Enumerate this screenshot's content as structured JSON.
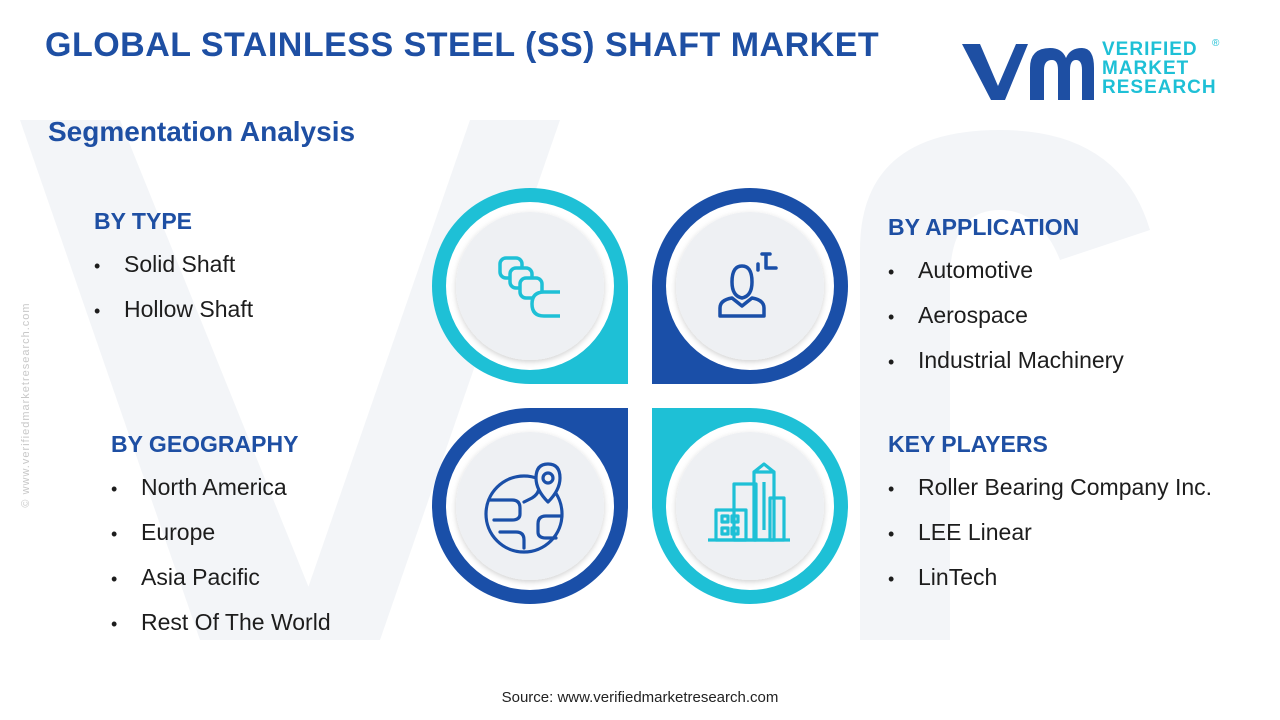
{
  "header": {
    "title": "GLOBAL STAINLESS STEEL (SS) SHAFT MARKET",
    "subtitle": "Segmentation Analysis"
  },
  "logo": {
    "line1": "VERIFIED",
    "line2": "MARKET",
    "line3": "RESEARCH",
    "registered": "®"
  },
  "side_watermark": "© www.verifiedmarketresearch.com",
  "segments": {
    "type": {
      "heading": "BY TYPE",
      "items": [
        "Solid Shaft",
        "Hollow Shaft"
      ]
    },
    "application": {
      "heading": "BY APPLICATION",
      "items": [
        "Automotive",
        "Aerospace",
        "Industrial Machinery"
      ]
    },
    "geography": {
      "heading": "BY GEOGRAPHY",
      "items": [
        "North America",
        "Europe",
        "Asia Pacific",
        "Rest Of The World"
      ]
    },
    "key_players": {
      "heading": "KEY PLAYERS",
      "items": [
        "Roller Bearing Company Inc.",
        "LEE Linear",
        "LinTech"
      ]
    }
  },
  "hub_icons": {
    "top_left": "stacked-shafts-icon",
    "top_right": "user-profile-icon",
    "bottom_left": "globe-location-icon",
    "bottom_right": "buildings-icon"
  },
  "colors": {
    "primary_blue": "#1e4fa3",
    "cyan": "#1ec0d6",
    "petal_light": "#1ec0d6",
    "petal_dark": "#1a4fa8",
    "inner_disc": "#eef0f3"
  },
  "source": "Source: www.verifiedmarketresearch.com"
}
